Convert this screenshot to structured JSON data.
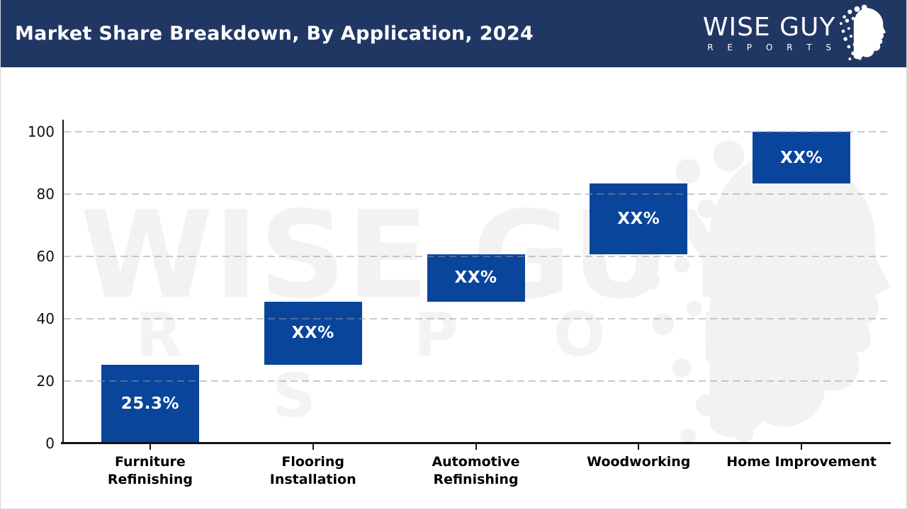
{
  "header": {
    "title": "Market Share Breakdown, By Application, 2024",
    "logo": {
      "brand": "WISE GUY",
      "sub": "R E P O R T S"
    }
  },
  "watermark": {
    "line1": "WISE GUY",
    "line2": "R E P O R T S"
  },
  "chart_data": {
    "type": "bar",
    "subtype": "waterfall",
    "title": "Market Share Breakdown, By Application, 2024",
    "categories": [
      "Furniture\nRefinishing",
      "Flooring\nInstallation",
      "Automotive\nRefinishing",
      "Woodworking",
      "Home Improvement"
    ],
    "segments": [
      {
        "category": "Furniture Refinishing",
        "start": 0,
        "end": 25.3,
        "label": "25.3%"
      },
      {
        "category": "Flooring Installation",
        "start": 25.3,
        "end": 45.5,
        "label": "XX%"
      },
      {
        "category": "Automotive Refinishing",
        "start": 45.5,
        "end": 60.7,
        "label": "XX%"
      },
      {
        "category": "Woodworking",
        "start": 60.7,
        "end": 83.4,
        "label": "XX%"
      },
      {
        "category": "Home Improvement",
        "start": 83.4,
        "end": 100,
        "label": "XX%"
      }
    ],
    "ylim": [
      0,
      100
    ],
    "yticks": [
      0,
      20,
      40,
      60,
      80,
      100
    ],
    "xlabel": "",
    "ylabel": "",
    "grid": "dashed-horizontal-over-bars",
    "legend": "none",
    "bar_color": "#0a459c",
    "bar_label_color": "#ffffff"
  },
  "colors": {
    "header_bg": "#213763",
    "bar": "#0a459c",
    "grid": "#d9d9d9",
    "axis": "#1a1a1a",
    "watermark": "#f2f2f2"
  }
}
